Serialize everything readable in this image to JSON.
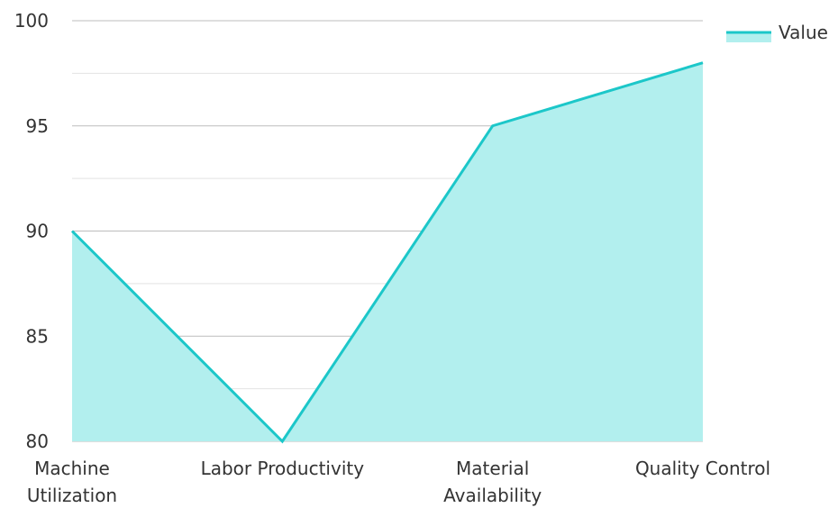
{
  "chart_data": {
    "type": "area",
    "categories": [
      [
        "Machine",
        "Utilization"
      ],
      [
        "Labor Productivity"
      ],
      [
        "Material",
        "Availability"
      ],
      [
        "Quality Control"
      ]
    ],
    "series": [
      {
        "name": "Value",
        "values": [
          90,
          80,
          95,
          98
        ]
      }
    ],
    "ylim": [
      80,
      100
    ],
    "yticks": [
      80,
      85,
      90,
      95,
      100
    ],
    "grid": true,
    "legend_position": "top-right",
    "colors": {
      "line": "#1cc7c9",
      "fill": "#b2efee",
      "grid_major": "#bdbdbd",
      "grid_minor": "#e3e3e3"
    }
  }
}
